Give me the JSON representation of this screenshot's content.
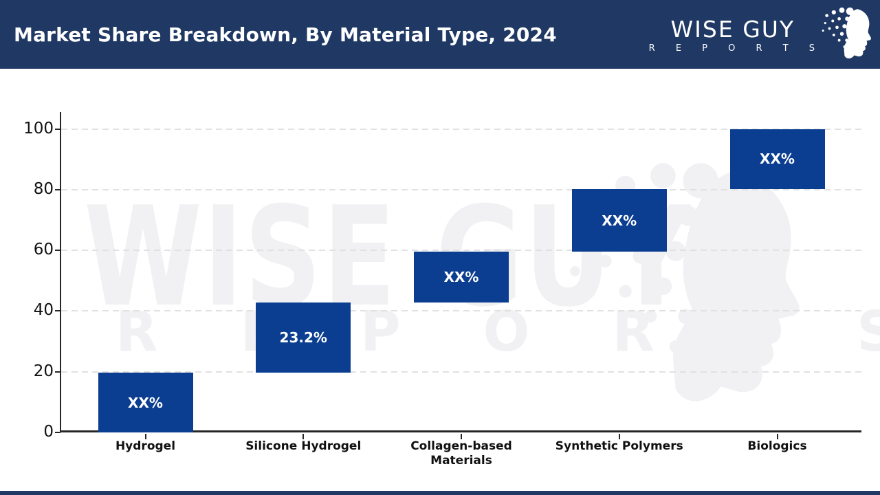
{
  "header": {
    "title": "Market Share Breakdown, By Material Type, 2024",
    "logo": {
      "line1": "WISE GUY",
      "line2": "R E P O R T S",
      "icon": "dotted-face-profile-icon"
    }
  },
  "watermark": {
    "line1": "WISE GUY",
    "line2": "R E P O R T S",
    "icon": "dotted-face-profile-icon"
  },
  "colors": {
    "header_bg": "#1f3864",
    "footer_bg": "#1f3864",
    "bar": "#0b3d91",
    "bar_label": "#ffffff",
    "grid": "#e1e1e1",
    "axis": "#262626",
    "tick_label": "#111111",
    "watermark": "#f1f1f4"
  },
  "chart_data": {
    "type": "bar",
    "subtype": "waterfall",
    "title": "Market Share Breakdown, By Material Type, 2024",
    "xlabel": "",
    "ylabel": "",
    "ylim": [
      0,
      105.4
    ],
    "yticks": [
      0,
      20,
      40,
      60,
      80,
      100
    ],
    "grid": "horizontal-dashed",
    "legend": "none",
    "categories": [
      "Hydrogel",
      "Silicone Hydrogel",
      "Collagen-based Materials",
      "Synthetic Polymers",
      "Biologics"
    ],
    "segments": [
      {
        "category": "Hydrogel",
        "start": 0,
        "end": 19.7,
        "label": "XX%"
      },
      {
        "category": "Silicone Hydrogel",
        "start": 19.7,
        "end": 42.9,
        "label": "23.2%"
      },
      {
        "category": "Collagen-based Materials",
        "start": 42.9,
        "end": 59.6,
        "label": "XX%"
      },
      {
        "category": "Synthetic Polymers",
        "start": 59.6,
        "end": 80.1,
        "label": "XX%"
      },
      {
        "category": "Biologics",
        "start": 80.1,
        "end": 100,
        "label": "XX%"
      }
    ]
  }
}
